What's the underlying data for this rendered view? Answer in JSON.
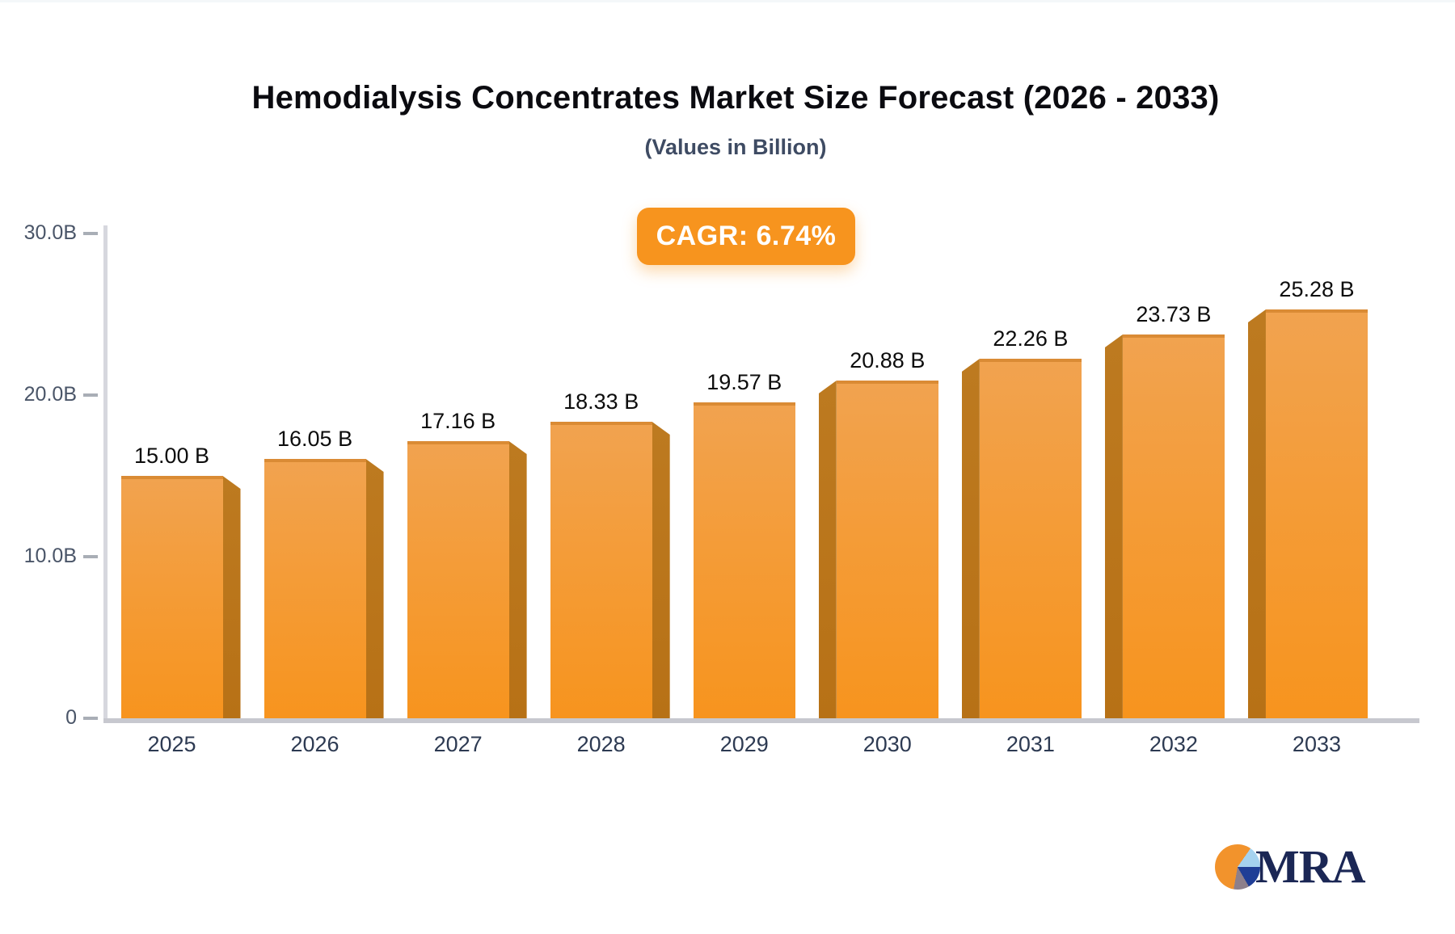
{
  "header": {
    "title": "Hemodialysis Concentrates Market Size Forecast (2026 - 2033)",
    "subtitle": "(Values in Billion)",
    "cagr_label": "CAGR: 6.74%"
  },
  "chart_data": {
    "type": "bar",
    "title": "Hemodialysis Concentrates Market Size Forecast (2026 - 2033)",
    "subtitle": "(Values in Billion)",
    "categories": [
      "2025",
      "2026",
      "2027",
      "2028",
      "2029",
      "2030",
      "2031",
      "2032",
      "2033"
    ],
    "values": [
      15.0,
      16.05,
      17.16,
      18.33,
      19.57,
      20.88,
      22.26,
      23.73,
      25.28
    ],
    "value_labels": [
      "15.00 B",
      "16.05 B",
      "17.16 B",
      "18.33 B",
      "19.57 B",
      "20.88 B",
      "22.26 B",
      "23.73 B",
      "25.28 B"
    ],
    "xlabel": "",
    "ylabel": "",
    "ylim": [
      0,
      30
    ],
    "yticks": [
      {
        "value": 0,
        "label": "0"
      },
      {
        "value": 10,
        "label": "10.0B"
      },
      {
        "value": 20,
        "label": "20.0B"
      },
      {
        "value": 30,
        "label": "30.0B"
      }
    ],
    "grid": false,
    "legend": "none",
    "annotation": "CAGR: 6.74%",
    "bar_style": "3d-perspective-center-vanishing"
  },
  "colors": {
    "bar_face": "#f7941e",
    "bar_face_light": "#f1a350",
    "bar_side": "#ba7418",
    "badge": "#f7941e",
    "badge_text": "#ffffff",
    "axis_line": "#d6d7de",
    "tick_label": "#4a5568",
    "category_label": "#2d3a52",
    "value_label": "#0d0d0d",
    "logo_navy": "#1b2755",
    "logo_orange": "#f2932c",
    "logo_lightblue": "#a5d2ef"
  },
  "logo": {
    "text": "MRA"
  }
}
